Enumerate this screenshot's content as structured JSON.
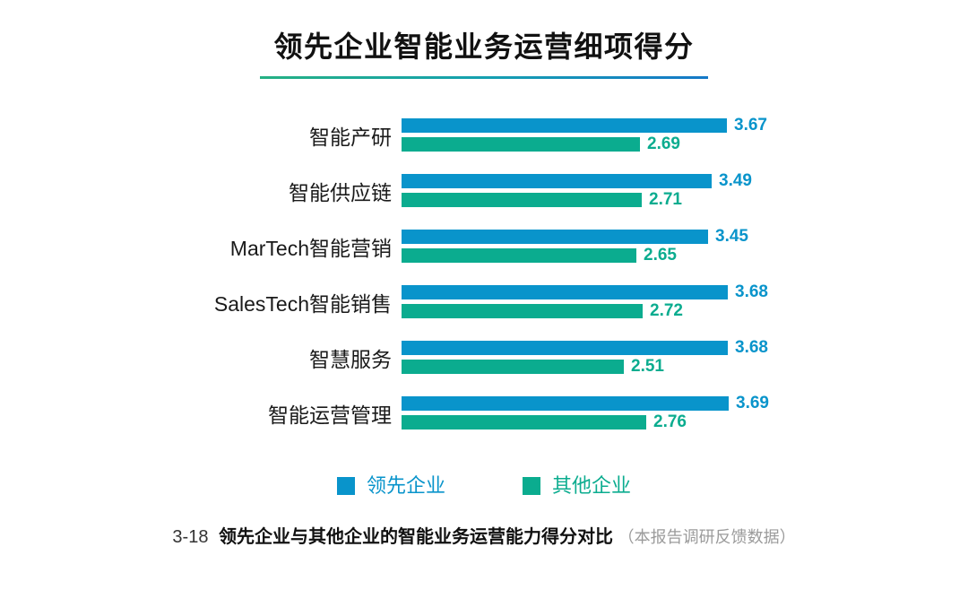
{
  "title": "领先企业智能业务运营细项得分",
  "chart_data": {
    "type": "bar",
    "orientation": "horizontal",
    "title": "领先企业智能业务运营细项得分",
    "categories": [
      "智能产研",
      "智能供应链",
      "MarTech智能营销",
      "SalesTech智能销售",
      "智慧服务",
      "智能运营管理"
    ],
    "series": [
      {
        "name": "领先企业",
        "color": "#0994cb",
        "values": [
          3.67,
          3.49,
          3.45,
          3.68,
          3.68,
          3.69
        ]
      },
      {
        "name": "其他企业",
        "color": "#0bac8f",
        "values": [
          2.69,
          2.71,
          2.65,
          2.72,
          2.51,
          2.76
        ]
      }
    ],
    "xlim": [
      0,
      4
    ],
    "value_labels": true,
    "grid": false,
    "legend_position": "bottom"
  },
  "legend": {
    "leading_label": "领先企业",
    "others_label": "其他企业"
  },
  "caption": {
    "number": "3-18",
    "text": "领先企业与其他企业的智能业务运营能力得分对比",
    "note": "（本报告调研反馈数据）"
  },
  "colors": {
    "leading_blue": "#0994cb",
    "others_green": "#0bac8f",
    "underline_gradient_left": "#25b183",
    "underline_gradient_right": "#1478c8",
    "title_text": "#111111",
    "category_text": "#1a1a1a",
    "caption_note_text": "#9b9b9b"
  }
}
